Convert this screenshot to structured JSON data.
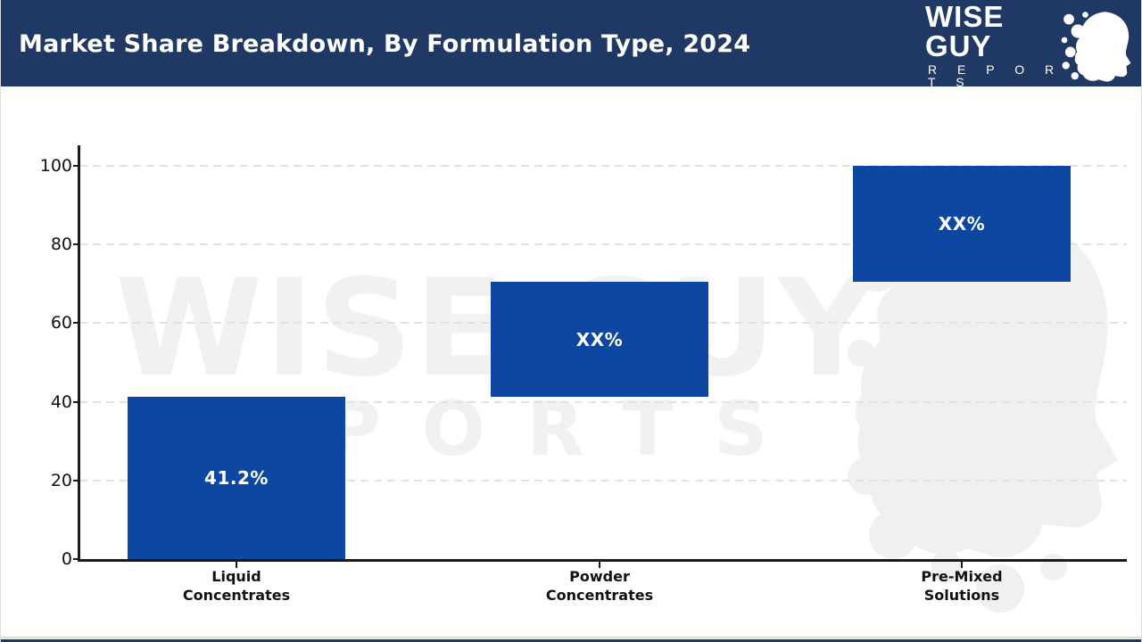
{
  "header": {
    "title": "Market Share Breakdown, By Formulation Type, 2024",
    "logo": {
      "line1": "WISE GUY",
      "line2": "R E P O R T S"
    }
  },
  "watermark": {
    "line1": "WISE GUY",
    "line2": "REPORTS"
  },
  "colors": {
    "header_bg": "#1f3864",
    "bar": "#0d47a1",
    "bar_label": "#ffffff",
    "grid": "#e2e2e2",
    "axis": "#1a1a1a",
    "watermark": "#f1f1f4"
  },
  "chart_data": {
    "type": "bar",
    "subtype": "stacked-waterfall",
    "title": "Market Share Breakdown, By Formulation Type, 2024",
    "xlabel": "",
    "ylabel": "",
    "categories": [
      "Liquid\nConcentrates",
      "Powder\nConcentrates",
      "Pre-Mixed\nSolutions"
    ],
    "segments": [
      {
        "category": "Liquid\nConcentrates",
        "label": "41.2%",
        "start": 0,
        "end": 41.2
      },
      {
        "category": "Powder\nConcentrates",
        "label": "XX%",
        "start": 41.2,
        "end": 70.5
      },
      {
        "category": "Pre-Mixed\nSolutions",
        "label": "XX%",
        "start": 70.5,
        "end": 100
      }
    ],
    "yticks": [
      0,
      20,
      40,
      60,
      80,
      100
    ],
    "ylim": [
      0,
      105
    ],
    "grid": "dashed-horizontal",
    "legend": "none"
  }
}
